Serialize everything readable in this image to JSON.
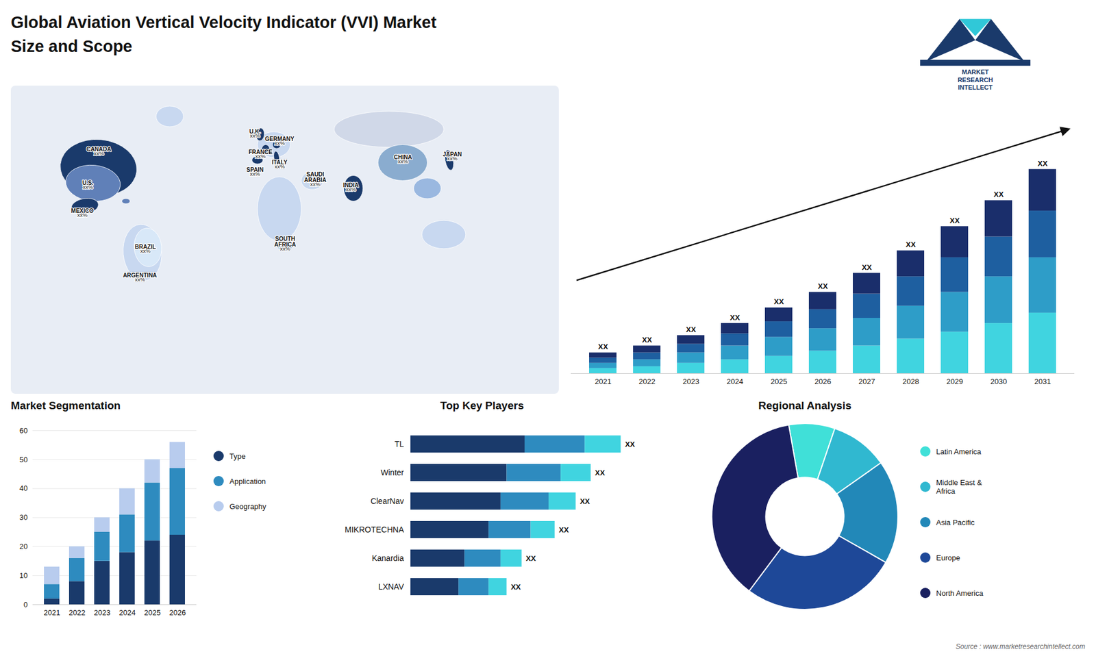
{
  "title": "Global Aviation Vertical Velocity Indicator (VVI) Market\nSize and Scope",
  "logo": {
    "text": [
      "MARKET",
      "RESEARCH",
      "INTELLECT"
    ],
    "colors": [
      "#1a3a6b",
      "#30c8d8"
    ]
  },
  "source": "Source : www.marketresearchintellect.com",
  "chart_data": [
    {
      "type": "map",
      "regions": [
        {
          "name": "CANADA",
          "value_label": "xx%"
        },
        {
          "name": "U.S.",
          "value_label": "xx%"
        },
        {
          "name": "MEXICO",
          "value_label": "xx%"
        },
        {
          "name": "BRAZIL",
          "value_label": "xx%"
        },
        {
          "name": "ARGENTINA",
          "value_label": "xx%"
        },
        {
          "name": "U.K.",
          "value_label": "xx%"
        },
        {
          "name": "FRANCE",
          "value_label": "xx%"
        },
        {
          "name": "SPAIN",
          "value_label": "xx%"
        },
        {
          "name": "GERMANY",
          "value_label": "xx%"
        },
        {
          "name": "ITALY",
          "value_label": "xx%"
        },
        {
          "name": "SAUDI\nARABIA",
          "value_label": "xx%"
        },
        {
          "name": "CHINA",
          "value_label": "xx%"
        },
        {
          "name": "JAPAN",
          "value_label": "xx%"
        },
        {
          "name": "INDIA",
          "value_label": "xx%"
        },
        {
          "name": "SOUTH\nAFRICA",
          "value_label": "xx%"
        }
      ],
      "colors": [
        "#e8edf5",
        "#c8d8f0",
        "#1a3a6b",
        "#6080b8",
        "#1a3a6b",
        "#6080b8",
        "#c8d8f0",
        "#d8e8f8",
        "#c8d8f0",
        "#1a3a6b",
        "#1a3a6b",
        "#1a3a6b",
        "#1a3a6b",
        "#1a3a6b",
        "#c8d8f0",
        "#b0c8e0",
        "#c8d8ee",
        "#d0d8e8",
        "#8aaccf",
        "#1a3a6b",
        "#1a3a6b",
        "#9ab8e0",
        "#c8d8f0"
      ]
    },
    {
      "type": "bar",
      "stacked": true,
      "categories": [
        "2021",
        "2022",
        "2023",
        "2024",
        "2025",
        "2026",
        "2027",
        "2028",
        "2029",
        "2030",
        "2031"
      ],
      "series": [
        {
          "color": "#40d4e0",
          "values": [
            3,
            4,
            6,
            8,
            10,
            13,
            16,
            20,
            24,
            29,
            35
          ]
        },
        {
          "color": "#2e9dc8",
          "values": [
            3,
            4,
            6,
            8,
            11,
            13,
            16,
            19,
            23,
            27,
            32
          ]
        },
        {
          "color": "#1e5fa0",
          "values": [
            3,
            4,
            5,
            7,
            9,
            11,
            14,
            17,
            20,
            23,
            27
          ]
        },
        {
          "color": "#1a2e6b",
          "values": [
            3,
            4,
            5,
            6,
            8,
            10,
            12,
            15,
            18,
            21,
            24
          ]
        }
      ],
      "ylim": [
        0,
        153.4
      ],
      "tick_labels": "x",
      "annotations": [
        "XX",
        "XX",
        "XX",
        "XX",
        "XX",
        "XX",
        "XX",
        "XX",
        "XX",
        "XX",
        "XX"
      ]
    },
    {
      "type": "bar",
      "title": "Market Segmentation",
      "stacked": true,
      "categories": [
        "2021",
        "2022",
        "2023",
        "2024",
        "2025",
        "2026"
      ],
      "series": [
        {
          "name": "Type",
          "color": "#1a3a6b",
          "values": [
            2,
            8,
            15,
            18,
            22,
            24
          ]
        },
        {
          "name": "Application",
          "color": "#2e8bbf",
          "values": [
            5,
            8,
            10,
            13,
            20,
            23
          ]
        },
        {
          "name": "Geography",
          "color": "#b8ccee",
          "values": [
            6,
            4,
            5,
            9,
            8,
            9
          ]
        }
      ],
      "ylim": [
        0,
        60
      ],
      "yticks": [
        0,
        10,
        20,
        30,
        40,
        50,
        60
      ],
      "grid": true,
      "legend": "right"
    },
    {
      "type": "bar",
      "title": "Top Key Players",
      "orientation": "horizontal",
      "stacked": true,
      "categories": [
        "TL",
        "Winter",
        "ClearNav",
        "MIKROTECHNA",
        "Kanardia",
        "LXNAV"
      ],
      "series": [
        {
          "color": "#1a3a6b",
          "values": [
            0.38,
            0.32,
            0.3,
            0.26,
            0.18,
            0.16
          ]
        },
        {
          "color": "#2e8bbf",
          "values": [
            0.2,
            0.18,
            0.16,
            0.14,
            0.12,
            0.1
          ]
        },
        {
          "color": "#40d4e0",
          "values": [
            0.12,
            0.1,
            0.09,
            0.08,
            0.07,
            0.06
          ]
        }
      ],
      "xlim": [
        0,
        0.8
      ],
      "tick_labels": "y",
      "annotations": [
        "XX",
        "XX",
        "XX",
        "XX",
        "XX",
        "XX"
      ]
    },
    {
      "type": "pie",
      "title": "Regional Analysis",
      "categories": [
        "Latin America",
        "Middle East &\nAfrica",
        "Asia Pacific",
        "Europe",
        "North America"
      ],
      "values": [
        8,
        10,
        18,
        27,
        37
      ],
      "colors": [
        "#40e0d8",
        "#30b8d0",
        "#2288b8",
        "#1e4898",
        "#1a2060"
      ],
      "legend": "right"
    }
  ]
}
